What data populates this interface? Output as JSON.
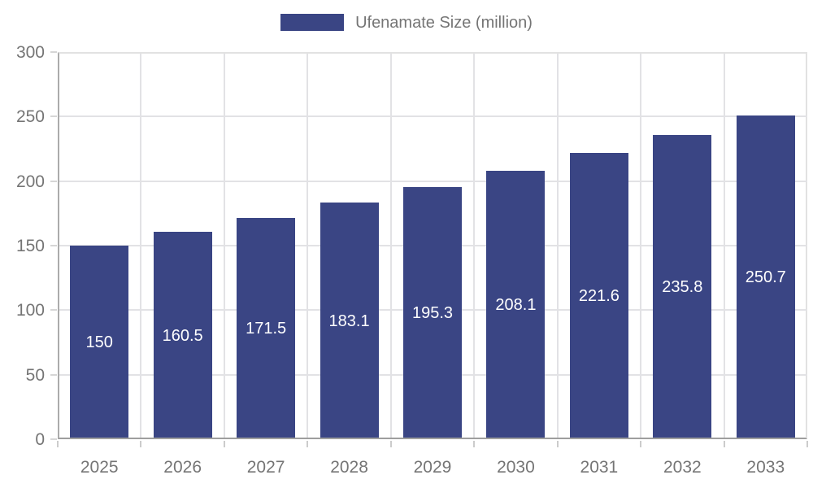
{
  "chart_data": {
    "type": "bar",
    "legend": "Ufenamate Size (million)",
    "legend_position": "top",
    "categories": [
      "2025",
      "2026",
      "2027",
      "2028",
      "2029",
      "2030",
      "2031",
      "2032",
      "2033"
    ],
    "values": [
      150,
      160.5,
      171.5,
      183.1,
      195.3,
      208.1,
      221.6,
      235.8,
      250.7
    ],
    "value_labels": [
      "150",
      "160.5",
      "171.5",
      "183.1",
      "195.3",
      "208.1",
      "221.6",
      "235.8",
      "250.7"
    ],
    "ylim": [
      0,
      300
    ],
    "yticks": [
      0,
      50,
      100,
      150,
      200,
      250,
      300
    ],
    "grid": true,
    "colors": {
      "bar": "#3a4584",
      "value_label": "#ffffff",
      "axis_text": "#757575",
      "grid_line": "#e2e2e5",
      "axis_line": "#9e9e9e"
    }
  }
}
